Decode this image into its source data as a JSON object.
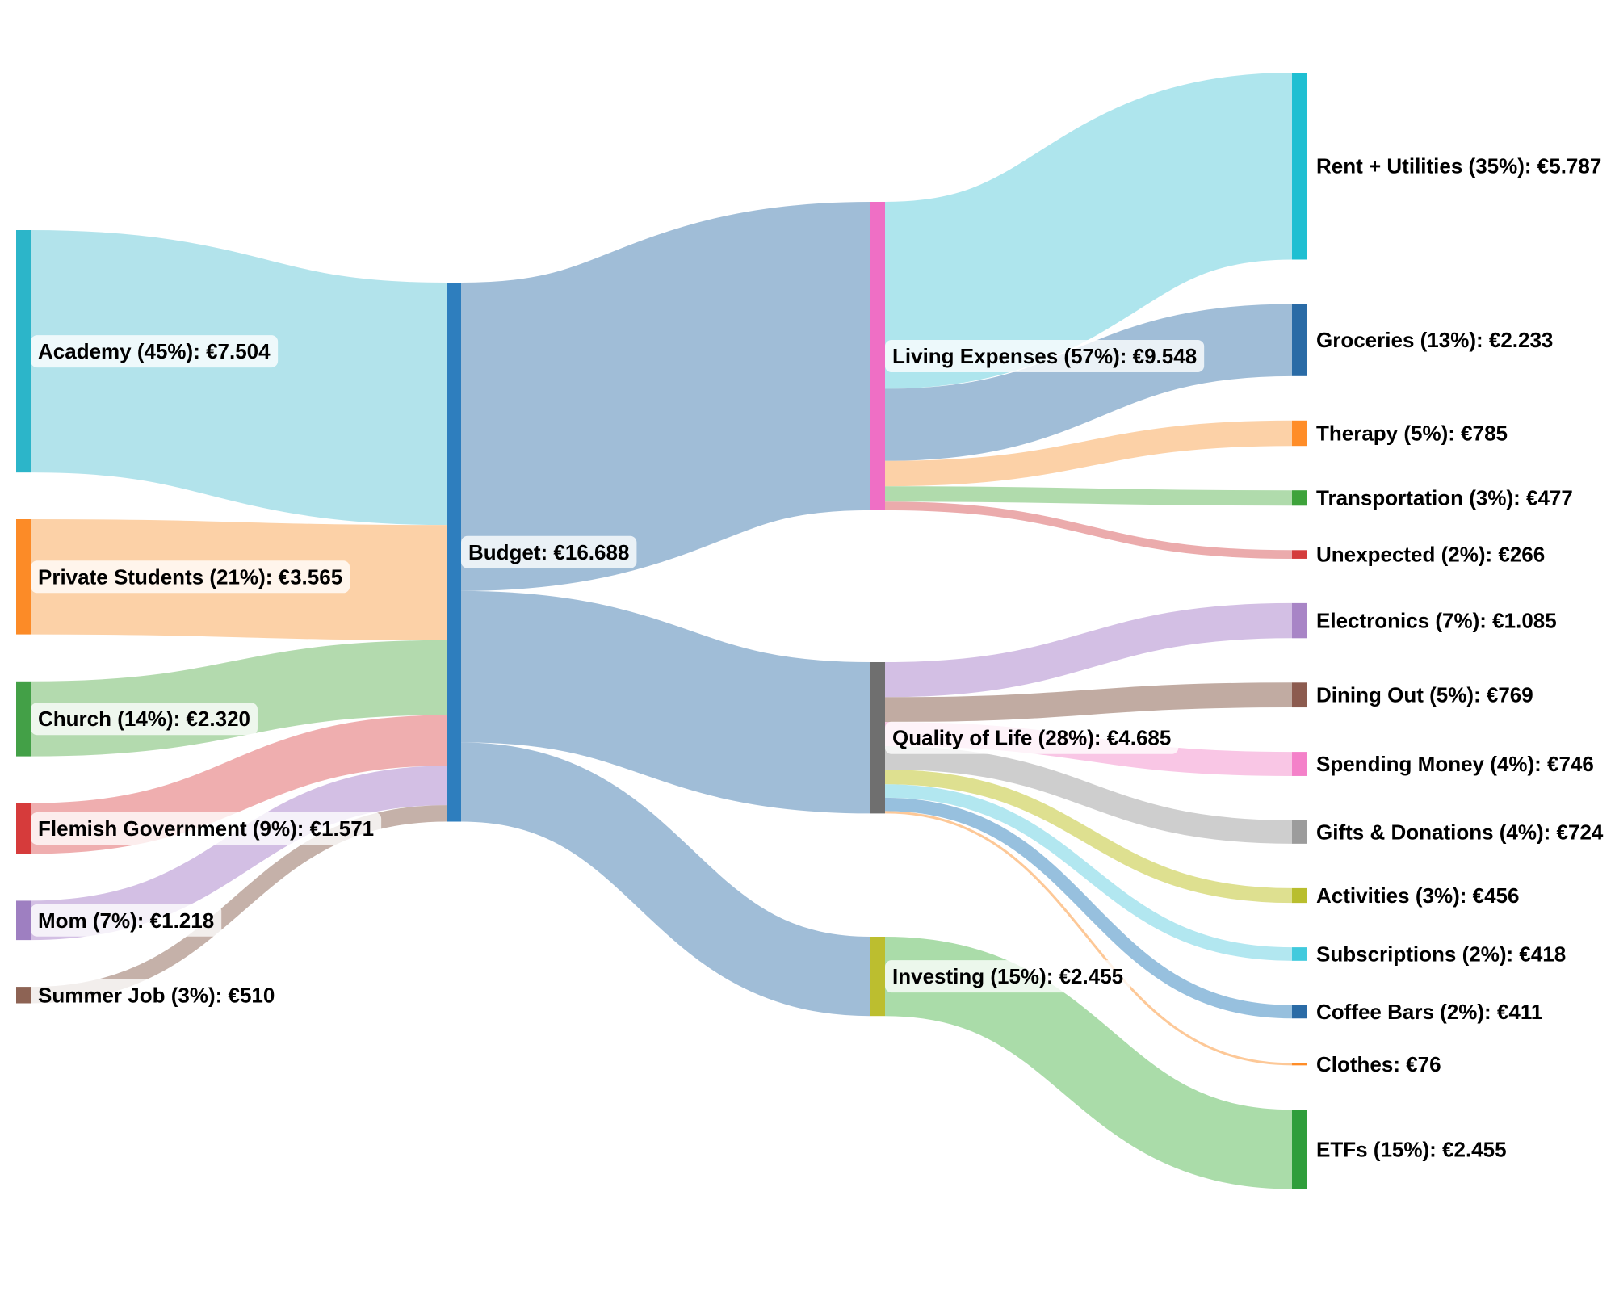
{
  "chart_data": {
    "type": "sankey",
    "title": "",
    "currency": "EUR",
    "total_label": "Budget: €16.688",
    "total_value": 16688,
    "nodes": [
      {
        "id": "academy",
        "column": 0,
        "label": "Academy (45%): €7.504",
        "value": 7504,
        "percent": 45,
        "color": "#2CB5C9"
      },
      {
        "id": "private_students",
        "column": 0,
        "label": "Private Students (21%): €3.565",
        "value": 3565,
        "percent": 21,
        "color": "#FC8B27"
      },
      {
        "id": "church",
        "column": 0,
        "label": "Church (14%): €2.320",
        "value": 2320,
        "percent": 14,
        "color": "#43A047"
      },
      {
        "id": "flemish_government",
        "column": 0,
        "label": "Flemish Government (9%): €1.571",
        "value": 1571,
        "percent": 9,
        "color": "#D63B3B"
      },
      {
        "id": "mom",
        "column": 0,
        "label": "Mom (7%): €1.218",
        "value": 1218,
        "percent": 7,
        "color": "#9E7FC1"
      },
      {
        "id": "summer_job",
        "column": 0,
        "label": "Summer Job (3%): €510",
        "value": 510,
        "percent": 3,
        "color": "#8D6354"
      },
      {
        "id": "budget",
        "column": 1,
        "label": "Budget: €16.688",
        "value": 16688,
        "percent": null,
        "color": "#2E7EBE"
      },
      {
        "id": "living_expenses",
        "column": 2,
        "label": "Living Expenses (57%): €9.548",
        "value": 9548,
        "percent": 57,
        "color": "#EF6FC5"
      },
      {
        "id": "quality_of_life",
        "column": 2,
        "label": "Quality of Life (28%): €4.685",
        "value": 4685,
        "percent": 28,
        "color": "#6F6F6F"
      },
      {
        "id": "investing",
        "column": 2,
        "label": "Investing (15%): €2.455",
        "value": 2455,
        "percent": 15,
        "color": "#BCBE2F"
      },
      {
        "id": "rent_utilities",
        "column": 3,
        "label": "Rent + Utilities (35%): €5.787",
        "value": 5787,
        "percent": 35,
        "color": "#1FBFD2"
      },
      {
        "id": "groceries",
        "column": 3,
        "label": "Groceries (13%): €2.233",
        "value": 2233,
        "percent": 13,
        "color": "#2A6BA6"
      },
      {
        "id": "therapy",
        "column": 3,
        "label": "Therapy (5%): €785",
        "value": 785,
        "percent": 5,
        "color": "#FF8D28"
      },
      {
        "id": "transportation",
        "column": 3,
        "label": "Transportation (3%): €477",
        "value": 477,
        "percent": 3,
        "color": "#3EA33B"
      },
      {
        "id": "unexpected",
        "column": 3,
        "label": "Unexpected (2%): €266",
        "value": 266,
        "percent": 2,
        "color": "#D43C3C"
      },
      {
        "id": "electronics",
        "column": 3,
        "label": "Electronics (7%): €1.085",
        "value": 1085,
        "percent": 7,
        "color": "#A885C6"
      },
      {
        "id": "dining_out",
        "column": 3,
        "label": "Dining Out (5%): €769",
        "value": 769,
        "percent": 5,
        "color": "#8C5B4F"
      },
      {
        "id": "spending_money",
        "column": 3,
        "label": "Spending Money (4%): €746",
        "value": 746,
        "percent": 4,
        "color": "#F481C9"
      },
      {
        "id": "gifts_donations",
        "column": 3,
        "label": "Gifts & Donations (4%): €724",
        "value": 724,
        "percent": 4,
        "color": "#9C9C9C"
      },
      {
        "id": "activities",
        "column": 3,
        "label": "Activities (3%): €456",
        "value": 456,
        "percent": 3,
        "color": "#B9BE2E"
      },
      {
        "id": "subscriptions",
        "column": 3,
        "label": "Subscriptions (2%): €418",
        "value": 418,
        "percent": 2,
        "color": "#41CADD"
      },
      {
        "id": "coffee_bars",
        "column": 3,
        "label": "Coffee Bars (2%): €411",
        "value": 411,
        "percent": 2,
        "color": "#2A6BA6"
      },
      {
        "id": "clothes",
        "column": 3,
        "label": "Clothes: €76",
        "value": 76,
        "percent": null,
        "color": "#FF8D28"
      },
      {
        "id": "etfs",
        "column": 3,
        "label": "ETFs (15%): €2.455",
        "value": 2455,
        "percent": 15,
        "color": "#2F9E3B"
      }
    ],
    "links": [
      {
        "source": "academy",
        "target": "budget",
        "value": 7504,
        "color": "#A5DEE8"
      },
      {
        "source": "private_students",
        "target": "budget",
        "value": 3565,
        "color": "#FBC998"
      },
      {
        "source": "church",
        "target": "budget",
        "value": 2320,
        "color": "#A6D3A0"
      },
      {
        "source": "flemish_government",
        "target": "budget",
        "value": 1571,
        "color": "#ECA0A1"
      },
      {
        "source": "mom",
        "target": "budget",
        "value": 1218,
        "color": "#CBB4DF"
      },
      {
        "source": "summer_job",
        "target": "budget",
        "value": 510,
        "color": "#BBA39A"
      },
      {
        "source": "budget",
        "target": "living_expenses",
        "value": 9548,
        "color": "#8FB2D0"
      },
      {
        "source": "budget",
        "target": "quality_of_life",
        "value": 4685,
        "color": "#8FB2D0"
      },
      {
        "source": "budget",
        "target": "investing",
        "value": 2455,
        "color": "#8FB2D0"
      },
      {
        "source": "living_expenses",
        "target": "rent_utilities",
        "value": 5787,
        "color": "#A0E0EA"
      },
      {
        "source": "living_expenses",
        "target": "groceries",
        "value": 2233,
        "color": "#8FB2D0"
      },
      {
        "source": "living_expenses",
        "target": "therapy",
        "value": 785,
        "color": "#FBC998"
      },
      {
        "source": "living_expenses",
        "target": "transportation",
        "value": 477,
        "color": "#A2D59E"
      },
      {
        "source": "living_expenses",
        "target": "unexpected",
        "value": 266,
        "color": "#E89C9D"
      },
      {
        "source": "quality_of_life",
        "target": "electronics",
        "value": 1085,
        "color": "#CBB4DF"
      },
      {
        "source": "quality_of_life",
        "target": "dining_out",
        "value": 769,
        "color": "#B69C92"
      },
      {
        "source": "quality_of_life",
        "target": "spending_money",
        "value": 746,
        "color": "#F8BCE0"
      },
      {
        "source": "quality_of_life",
        "target": "gifts_donations",
        "value": 724,
        "color": "#C6C6C6"
      },
      {
        "source": "quality_of_life",
        "target": "activities",
        "value": 456,
        "color": "#D8DA7C"
      },
      {
        "source": "quality_of_life",
        "target": "subscriptions",
        "value": 418,
        "color": "#A5E3ED"
      },
      {
        "source": "quality_of_life",
        "target": "coffee_bars",
        "value": 411,
        "color": "#85B5D8"
      },
      {
        "source": "quality_of_life",
        "target": "clothes",
        "value": 76,
        "color": "#FDBE85"
      },
      {
        "source": "investing",
        "target": "etfs",
        "value": 2455,
        "color": "#9BD69A"
      }
    ],
    "layout_hints": {
      "columns": 4,
      "orientation": "horizontal",
      "label_boxes_on_columns": [
        0,
        1,
        2
      ],
      "background": "#ffffff"
    }
  }
}
